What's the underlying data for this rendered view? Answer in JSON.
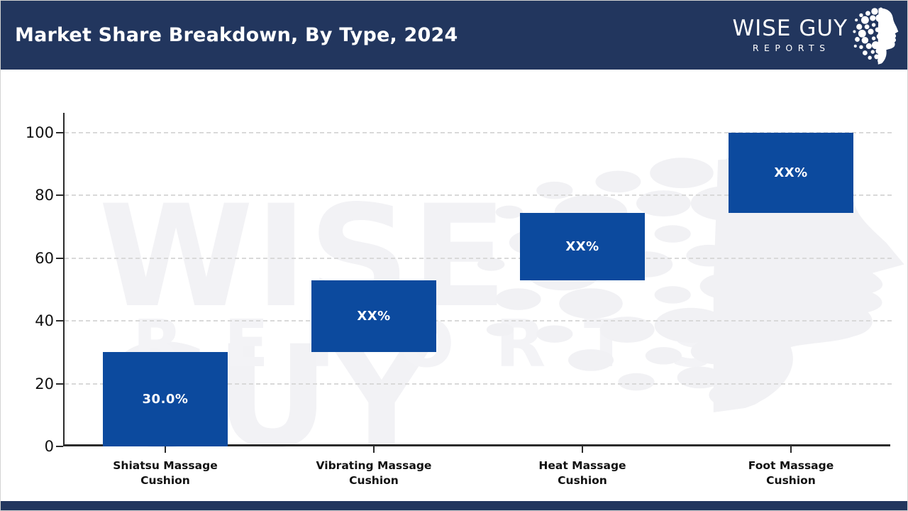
{
  "page": {
    "background": "#ffffff",
    "border_color": "#d3d3d3"
  },
  "header": {
    "title": "Market Share Breakdown, By Type, 2024",
    "bg_color": "#22365e",
    "text_color": "#ffffff",
    "logo": {
      "name": "WISE GUY",
      "tagline": "REPORTS",
      "icon": "dotted-face-profile"
    }
  },
  "footer": {
    "bg_color": "#22365e"
  },
  "watermark": {
    "line1": "WISE GUY",
    "line2": "REPORTS",
    "icon": "dotted-face-profile",
    "color": "#f2f2f5"
  },
  "chart_data": {
    "type": "bar",
    "subtype": "waterfall",
    "title": "Market Share Breakdown, By Type, 2024",
    "categories": [
      "Shiatsu Massage Cushion",
      "Vibrating Massage Cushion",
      "Heat Massage Cushion",
      "Foot Massage Cushion"
    ],
    "series": [
      {
        "name": "Market Share (%)",
        "segments": [
          {
            "category": "Shiatsu Massage Cushion",
            "start": 0,
            "end": 30,
            "label": "30.0%"
          },
          {
            "category": "Vibrating Massage Cushion",
            "start": 30,
            "end": 53,
            "label": "XX%"
          },
          {
            "category": "Heat Massage Cushion",
            "start": 53,
            "end": 74.5,
            "label": "XX%"
          },
          {
            "category": "Foot Massage Cushion",
            "start": 74.5,
            "end": 100,
            "label": "XX%"
          }
        ]
      }
    ],
    "xlabel": "",
    "ylabel": "",
    "ylim": [
      0,
      100
    ],
    "yticks": [
      0,
      20,
      40,
      60,
      80,
      100
    ],
    "grid": {
      "horizontal": true,
      "style": "dashed",
      "color": "#d9d9d9"
    },
    "legend": "none",
    "bar_color": "#0c4a9e",
    "bar_label_color": "#ffffff",
    "axis_color": "#2b2b2b",
    "tick_label_color": "#111111"
  }
}
